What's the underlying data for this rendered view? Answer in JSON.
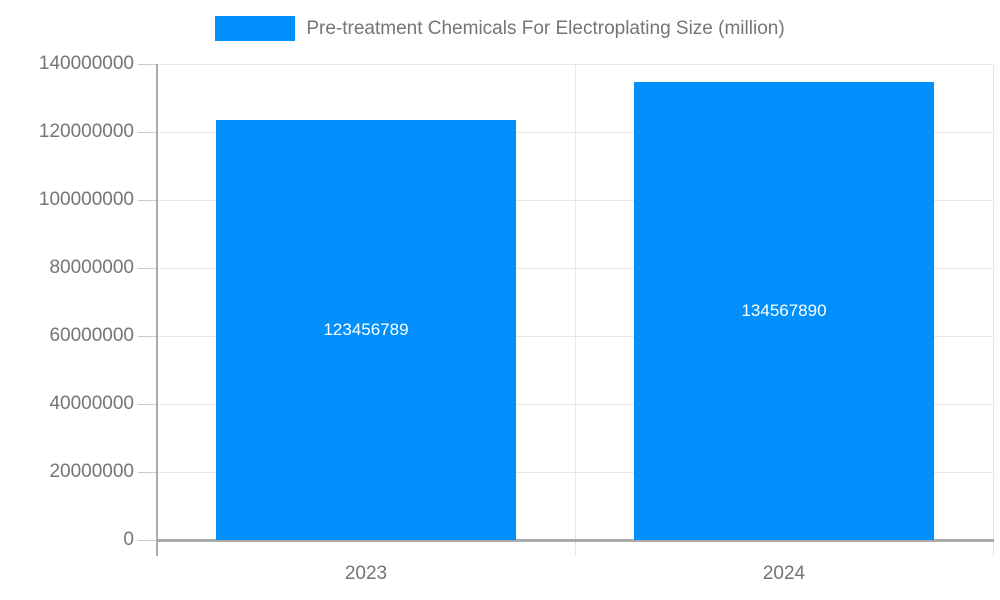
{
  "legend": {
    "label": "Pre-treatment Chemicals For Electroplating Size (million)",
    "swatch_color": "#008ffb"
  },
  "chart_data": {
    "type": "bar",
    "title": "Pre-treatment Chemicals For Electroplating Size (million)",
    "categories": [
      "2023",
      "2024"
    ],
    "series": [
      {
        "name": "Pre-treatment Chemicals For Electroplating Size (million)",
        "values": [
          123456789,
          134567890
        ],
        "color": "#008ffb"
      }
    ],
    "data_labels": [
      "123456789",
      "134567890"
    ],
    "xlabel": "",
    "ylabel": "",
    "ylim": [
      0,
      140000000
    ],
    "ytick_step": 20000000,
    "ytick_labels": [
      "0",
      "20000000",
      "40000000",
      "60000000",
      "80000000",
      "100000000",
      "120000000",
      "140000000"
    ],
    "grid": true,
    "legend_position": "top"
  },
  "colors": {
    "bar": "#008ffb",
    "axis_text": "#757575",
    "grid_line": "#e6e6e6",
    "axis_line": "#ababab",
    "tick_line": "#cccccc",
    "data_label_text": "#ffffff",
    "background": "#ffffff"
  }
}
